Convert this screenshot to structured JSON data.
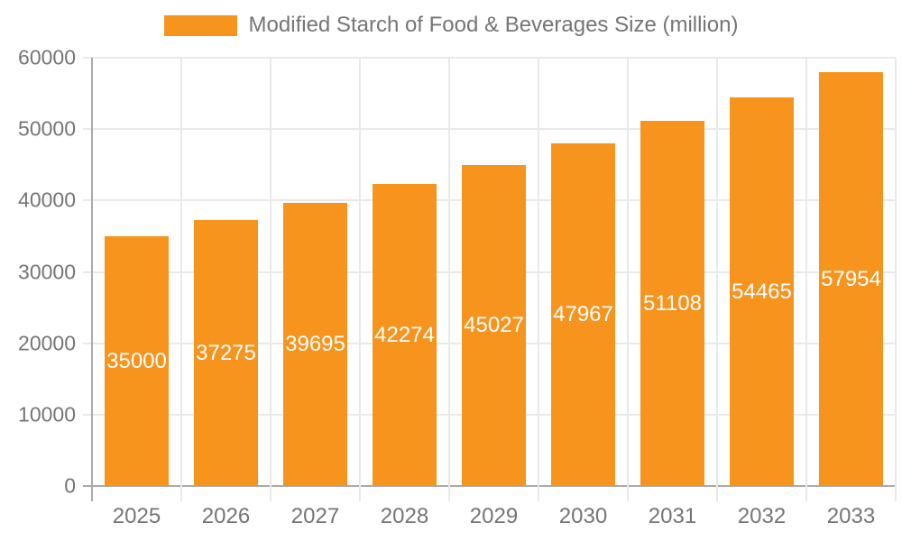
{
  "chart_data": {
    "type": "bar",
    "title": "Modified Starch of Food & Beverages Size (million)",
    "categories": [
      "2025",
      "2026",
      "2027",
      "2028",
      "2029",
      "2030",
      "2031",
      "2032",
      "2033"
    ],
    "values": [
      35000,
      37275,
      39695,
      42274,
      45027,
      47967,
      51108,
      54465,
      57954
    ],
    "series": [
      {
        "name": "Modified Starch of Food & Beverages Size (million)",
        "values": [
          35000,
          37275,
          39695,
          42274,
          45027,
          47967,
          51108,
          54465,
          57954
        ]
      }
    ],
    "xlabel": "",
    "ylabel": "",
    "ylim": [
      0,
      60000
    ],
    "yticks": [
      0,
      10000,
      20000,
      30000,
      40000,
      50000,
      60000
    ],
    "grid": true,
    "legend_position": "top-center",
    "value_labels": "inside-center",
    "colors": {
      "bar": "#f7941e",
      "value_label": "#ffffff",
      "axis_text": "#757575",
      "gridline": "#e9e9e9",
      "axis_line": "#aaaaaa",
      "background": "#ffffff"
    }
  },
  "legend": {
    "label": "Modified Starch of Food & Beverages Size (million)"
  }
}
